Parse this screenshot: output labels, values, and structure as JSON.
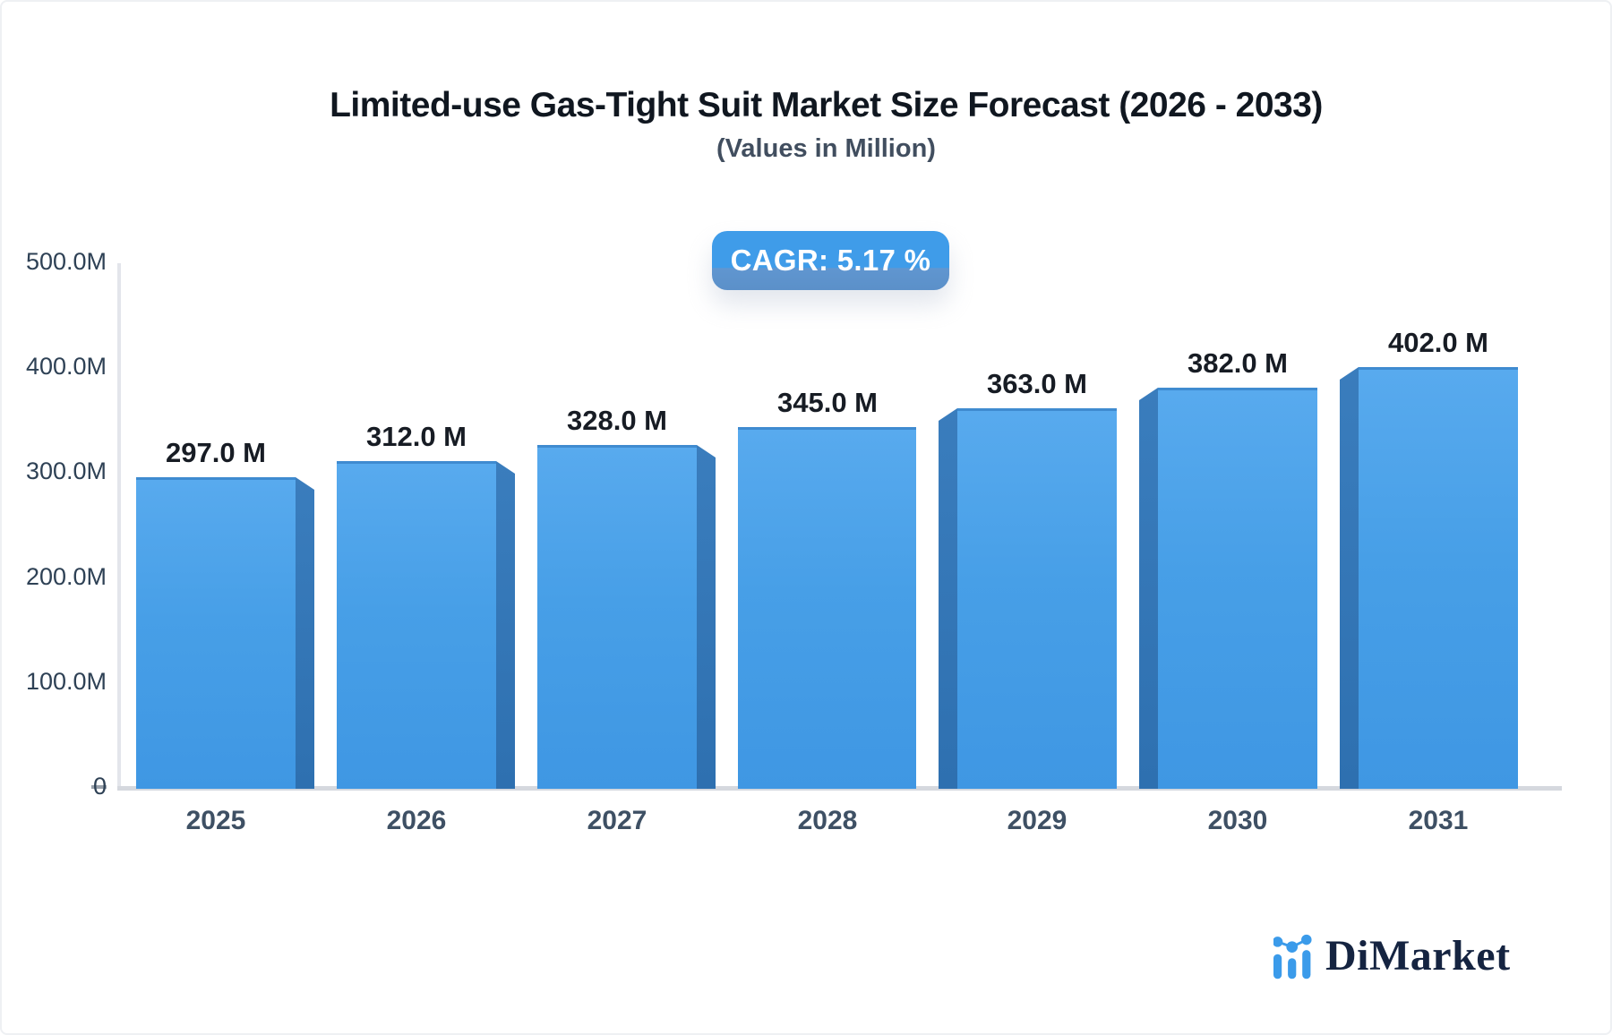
{
  "header": {
    "title": "Limited-use Gas-Tight Suit Market Size Forecast (2026 - 2033)",
    "subtitle": "(Values in Million)"
  },
  "badge": {
    "label": "CAGR: 5.17 %"
  },
  "brand": {
    "name": "DiMarket"
  },
  "colors": {
    "bar_face_top": "#58aaee",
    "bar_face_bottom": "#3f97e3",
    "bar_side": "#2e70b0",
    "badge_blue_top": "#3f9ce9",
    "badge_blue_bottom": "#5b90c9",
    "axis_line": "#e3e5eb",
    "baseline": "#d5d8de",
    "brand_blue": "#3b9bea",
    "brand_navy": "#152441",
    "title_text": "#101720",
    "label_text": "#171c24"
  },
  "chart_data": {
    "type": "bar",
    "title": "Limited-use Gas-Tight Suit Market Size Forecast (2026 - 2033)",
    "subtitle": "(Values in Million)",
    "categories": [
      "2025",
      "2026",
      "2027",
      "2028",
      "2029",
      "2030",
      "2031"
    ],
    "values": [
      297.0,
      312.0,
      328.0,
      345.0,
      363.0,
      382.0,
      402.0
    ],
    "value_labels": [
      "297.0 M",
      "312.0 M",
      "328.0 M",
      "345.0 M",
      "363.0 M",
      "382.0 M",
      "402.0 M"
    ],
    "unit": "Million",
    "cagr": "5.17 %",
    "ylim": [
      0,
      500
    ],
    "yticks": [
      500,
      400,
      300,
      200,
      100,
      0
    ],
    "ytick_labels": [
      "500.0M",
      "400.0M",
      "300.0M",
      "200.0M",
      "100.0M",
      "0"
    ],
    "grid": false,
    "legend": false,
    "bar_style": "3d-bevel-perspective"
  }
}
